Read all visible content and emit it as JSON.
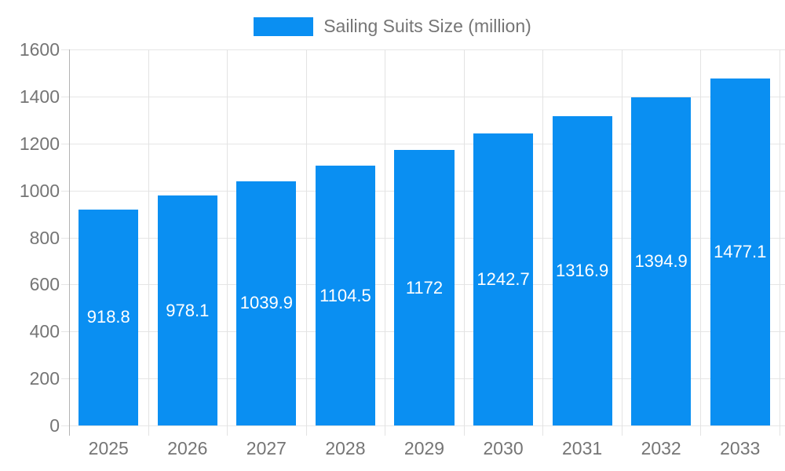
{
  "chart_data": {
    "type": "bar",
    "legend": "Sailing Suits Size (million)",
    "legend_position": "top-center",
    "categories": [
      "2025",
      "2026",
      "2027",
      "2028",
      "2029",
      "2030",
      "2031",
      "2032",
      "2033"
    ],
    "values": [
      918.8,
      978.1,
      1039.9,
      1104.5,
      1172,
      1242.7,
      1316.9,
      1394.9,
      1477.1
    ],
    "value_labels": [
      "918.8",
      "978.1",
      "1039.9",
      "1104.5",
      "1172",
      "1242.7",
      "1316.9",
      "1394.9",
      "1477.1"
    ],
    "ylim": [
      0,
      1600
    ],
    "yticks": [
      0,
      200,
      400,
      600,
      800,
      1000,
      1200,
      1400,
      1600
    ],
    "ytick_labels": [
      "0",
      "200",
      "400",
      "600",
      "800",
      "1000",
      "1200",
      "1400",
      "1600"
    ],
    "grid": true,
    "colors": {
      "bar": "#0a8ff2",
      "value_text": "#ffffff",
      "axis_text": "#757575",
      "grid": "#e6e6e6",
      "axis_line": "#b3b3b3",
      "background": "#ffffff"
    }
  }
}
